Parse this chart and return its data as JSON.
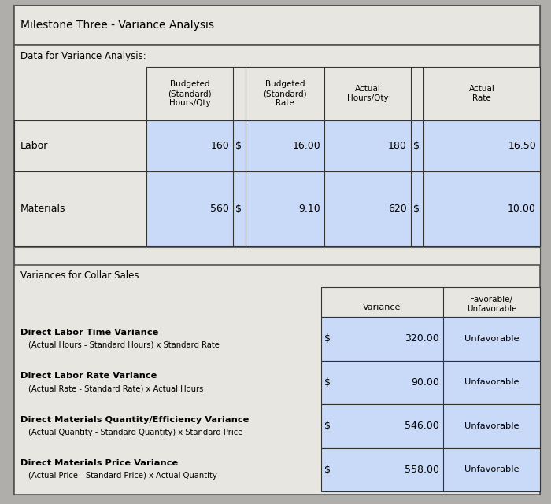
{
  "title": "Milestone Three - Variance Analysis",
  "section1_label": "Data for Variance Analysis:",
  "table1_headers": [
    "Budgeted\n(Standard)\nHours/Qty",
    "Budgeted\n(Standard)\nRate",
    "Actual\nHours/Qty",
    "Actual\nRate"
  ],
  "table1_rows": [
    {
      "label": "Labor",
      "col1": "160",
      "col2_dollar": "$",
      "col2": "16.00",
      "col3": "180",
      "col4_dollar": "$",
      "col4": "16.50"
    },
    {
      "label": "Materials",
      "col1": "560",
      "col2_dollar": "$",
      "col2": "9.10",
      "col3": "620",
      "col4_dollar": "$",
      "col4": "10.00"
    }
  ],
  "section2_label": "Variances for Collar Sales",
  "table2_rows": [
    {
      "title": "Direct Labor Time Variance",
      "subtitle": "(Actual Hours - Standard Hours) x Standard Rate",
      "dollar": "$",
      "variance": "320.00",
      "fav": "Unfavorable"
    },
    {
      "title": "Direct Labor Rate Variance",
      "subtitle": "(Actual Rate - Standard Rate) x Actual Hours",
      "dollar": "$",
      "variance": "90.00",
      "fav": "Unfavorable"
    },
    {
      "title": "Direct Materials Quantity/Efficiency Variance",
      "subtitle": "(Actual Quantity - Standard Quantity) x Standard Price",
      "dollar": "$",
      "variance": "546.00",
      "fav": "Unfavorable"
    },
    {
      "title": "Direct Materials Price Variance",
      "subtitle": "(Actual Price - Standard Price) x Actual Quantity",
      "dollar": "$",
      "variance": "558.00",
      "fav": "Unfavorable"
    }
  ],
  "highlight_color": "#c9daf8",
  "page_bg": "#e8e6e0",
  "outer_bg": "#b0aeaa"
}
